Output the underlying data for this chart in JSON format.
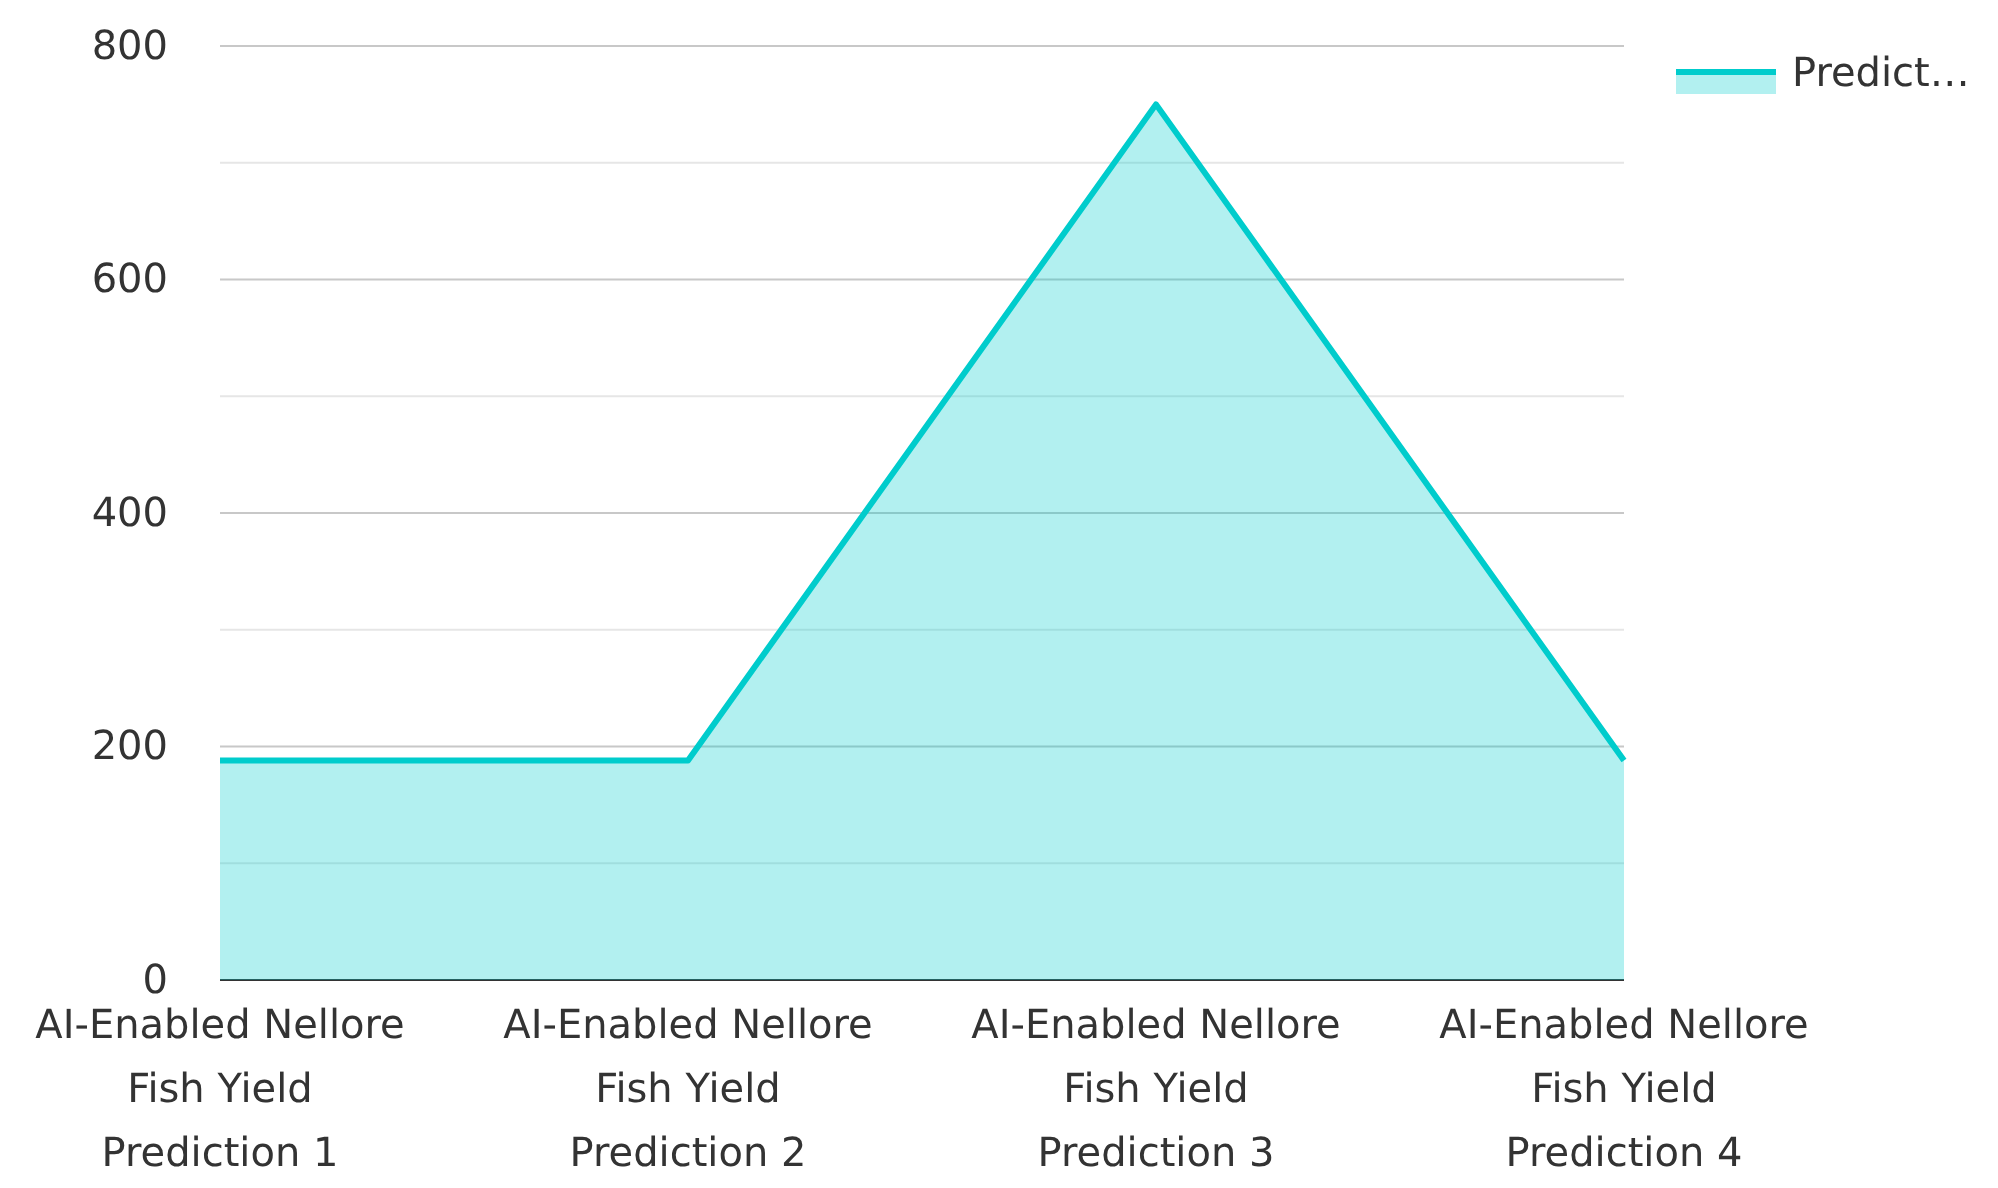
{
  "chart_data": {
    "type": "area",
    "categories": [
      "AI-Enabled Nellore Fish Yield Prediction 1",
      "AI-Enabled Nellore Fish Yield Prediction 2",
      "AI-Enabled Nellore Fish Yield Prediction 3",
      "AI-Enabled Nellore Fish Yield Prediction 4"
    ],
    "series": [
      {
        "name": "Predict…",
        "color": "#00cccc",
        "values": [
          188,
          188,
          750,
          188
        ]
      }
    ],
    "ylim": [
      0,
      800
    ],
    "yticks": [
      0,
      {
        "value": 100,
        "label": null
      },
      200,
      {
        "value": 300,
        "label": null
      },
      400,
      {
        "value": 500,
        "label": null
      },
      600,
      {
        "value": 700,
        "label": null
      },
      800
    ],
    "grid": "y",
    "legend": "top right",
    "marker": "none"
  }
}
